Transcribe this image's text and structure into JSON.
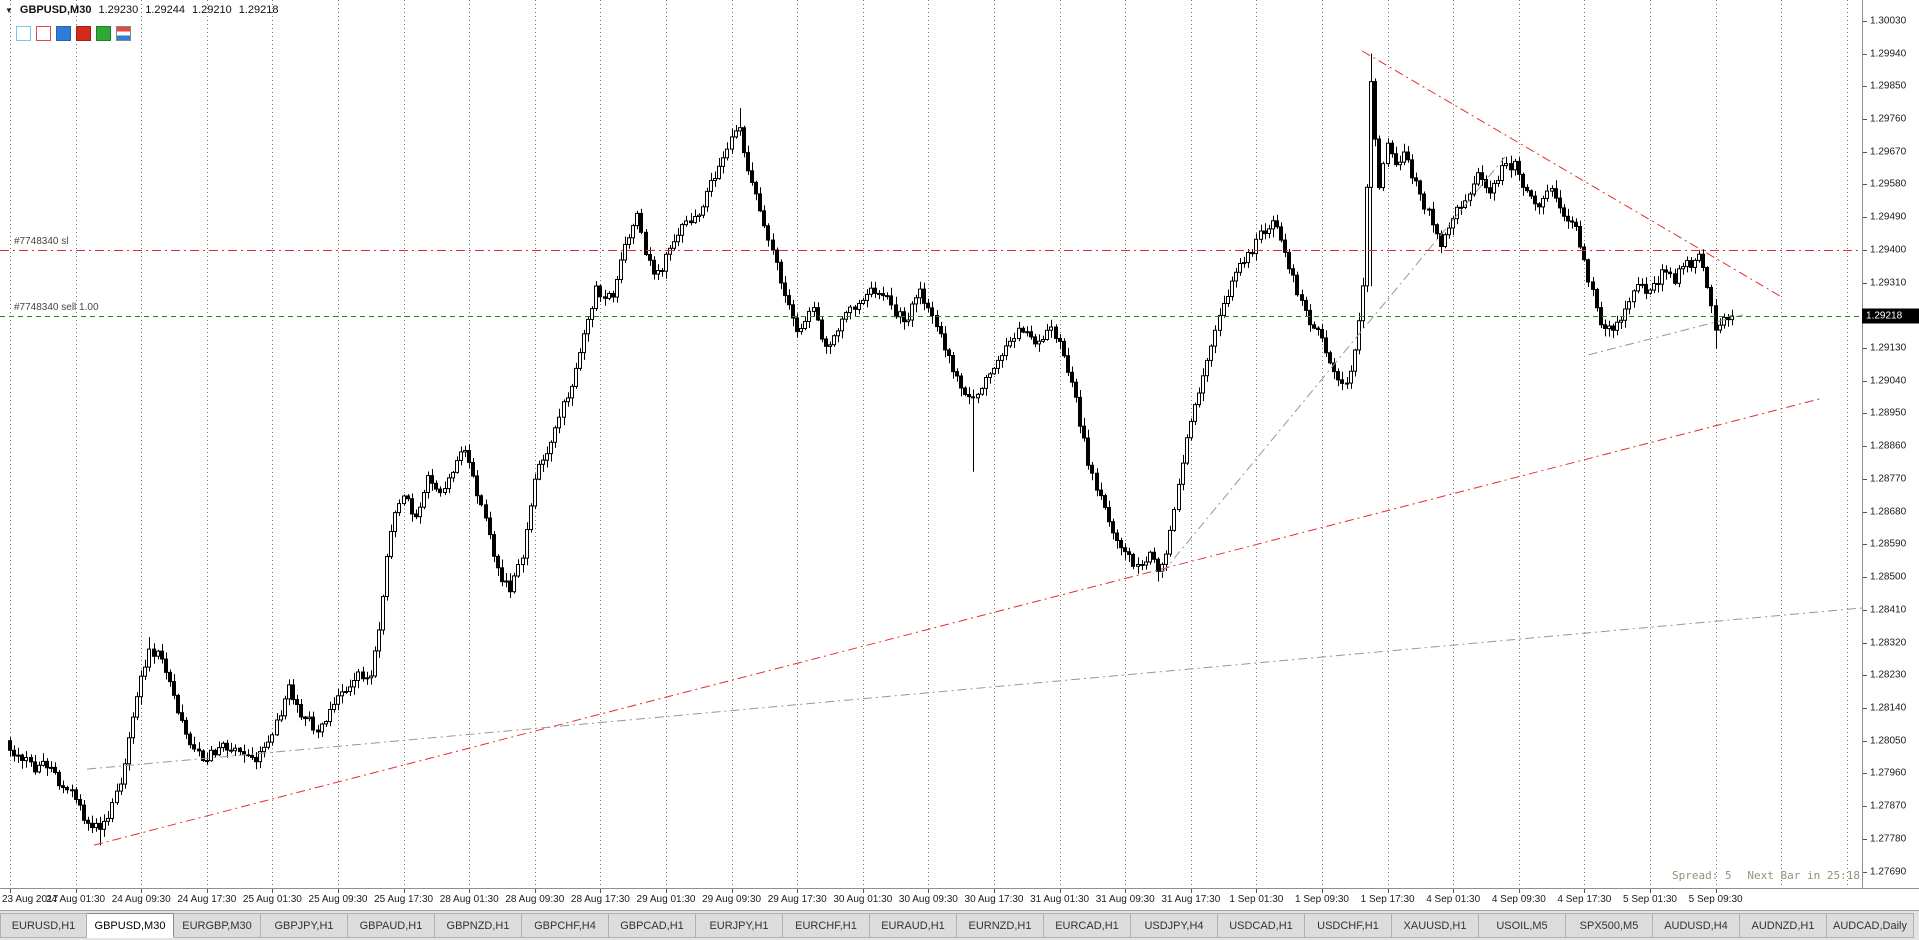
{
  "header": {
    "marker": "▼",
    "symbol": "GBPUSD,M30",
    "open": "1.29230",
    "high": "1.29244",
    "low": "1.29210",
    "close": "1.29218"
  },
  "toolbar": {
    "swatches": [
      {
        "name": "swatch-outline-lightblue",
        "fill": "#ffffff",
        "border": "#7cc4ea"
      },
      {
        "name": "swatch-outline-red",
        "fill": "#ffffff",
        "border": "#e04a3f"
      },
      {
        "name": "swatch-blue",
        "fill": "#2e7dd8",
        "border": "#2462b0"
      },
      {
        "name": "swatch-red",
        "fill": "#d42a1e",
        "border": "#a81f16"
      },
      {
        "name": "swatch-green",
        "fill": "#2fa838",
        "border": "#1f8028"
      },
      {
        "name": "swatch-striped-flag",
        "fill": "striped",
        "border": "#888888",
        "stripe_colors": [
          "#e04a3f",
          "#ffffff",
          "#2e7dd8"
        ]
      }
    ]
  },
  "order_lines": [
    {
      "name": "stop-loss-line",
      "label": "#7748340 sl",
      "price": 1.294,
      "color": "#d83030",
      "dash": "9,4,2,4"
    },
    {
      "name": "sell-order-line",
      "label": "#7748340 sell 1.00",
      "price": 1.29218,
      "color": "#1f8a1f",
      "dash": "5,4"
    }
  ],
  "trendlines": [
    {
      "name": "descending-red-trendline",
      "color": "#e23030",
      "dash": "9,4,2,4",
      "b1": 329.8,
      "p1": 1.29947,
      "b2": 431.7,
      "p2": 1.29273
    },
    {
      "name": "ascending-red-trendline",
      "color": "#e23030",
      "dash": "9,4,2,4",
      "b1": 20.5,
      "p1": 1.27763,
      "b2": 442.0,
      "p2": 1.28992
    },
    {
      "name": "ascending-gray-trendline-long",
      "color": "#979797",
      "dash": "9,4,2,4",
      "b1": 18.8,
      "p1": 1.27972,
      "b2": 451.7,
      "p2": 1.28415
    },
    {
      "name": "ascending-gray-trendline-steep",
      "color": "#979797",
      "dash": "9,4,2,4",
      "b1": 281.0,
      "p1": 1.28511,
      "b2": 364.6,
      "p2": 1.29655
    },
    {
      "name": "ascending-gray-trendline-minor",
      "color": "#979797",
      "dash": "9,4,2,4",
      "b1": 385.0,
      "p1": 1.29111,
      "b2": 422.7,
      "p2": 1.29221
    }
  ],
  "current_price": {
    "text": "1.29218",
    "value": 1.29218
  },
  "status": {
    "spread": "Spread: 5",
    "next_bar": "Next Bar in 25:18"
  },
  "price_axis": {
    "labels": [
      "1.30030",
      "1.29940",
      "1.29850",
      "1.29760",
      "1.29670",
      "1.29580",
      "1.29490",
      "1.29400",
      "1.29310",
      "1.29220",
      "1.29130",
      "1.29040",
      "1.28950",
      "1.28860",
      "1.28770",
      "1.28680",
      "1.28590",
      "1.28500",
      "1.28410",
      "1.28320",
      "1.28230",
      "1.28140",
      "1.28050",
      "1.27960",
      "1.27870",
      "1.27780",
      "1.27690"
    ]
  },
  "time_axis": {
    "labels": [
      "23 Aug 2017",
      "24 Aug 01:30",
      "24 Aug 09:30",
      "24 Aug 17:30",
      "25 Aug 01:30",
      "25 Aug 09:30",
      "25 Aug 17:30",
      "28 Aug 01:30",
      "28 Aug 09:30",
      "28 Aug 17:30",
      "29 Aug 01:30",
      "29 Aug 09:30",
      "29 Aug 17:30",
      "30 Aug 01:30",
      "30 Aug 09:30",
      "30 Aug 17:30",
      "31 Aug 01:30",
      "31 Aug 09:30",
      "31 Aug 17:30",
      "1 Sep 01:30",
      "1 Sep 09:30",
      "1 Sep 17:30",
      "4 Sep 01:30",
      "4 Sep 09:30",
      "4 Sep 17:30",
      "5 Sep 01:30",
      "5 Sep 09:30"
    ]
  },
  "tabs": {
    "active_index": 1,
    "labels": [
      "EURUSD,H1",
      "GBPUSD,M30",
      "EURGBP,M30",
      "GBPJPY,H1",
      "GBPAUD,H1",
      "GBPNZD,H1",
      "GBPCHF,H4",
      "GBPCAD,H1",
      "EURJPY,H1",
      "EURCHF,H1",
      "EURAUD,H1",
      "EURNZD,H1",
      "EURCAD,H1",
      "USDJPY,H4",
      "USDCAD,H1",
      "USDCHF,H1",
      "XAUUSD,H1",
      "USOIL,M5",
      "SPX500,M5",
      "AUDUSD,H4",
      "AUDNZD,H1",
      "AUDCAD,Daily"
    ]
  },
  "chart_data": {
    "type": "candlestick",
    "symbol": "GBPUSD",
    "timeframe": "M30",
    "ylim": [
      1.2769,
      1.3003
    ],
    "bar_count": 421,
    "bars_per_gridline": 16,
    "last_close": 1.29218,
    "grid": "vertical-dotted",
    "candle_colors": {
      "bull_body": "#ffffff",
      "bear_body": "#000000",
      "outline": "#000000"
    },
    "price_path": [
      [
        0,
        1.2803
      ],
      [
        4,
        1.28
      ],
      [
        6,
        1.2797
      ],
      [
        9,
        1.2799
      ],
      [
        12,
        1.27935
      ],
      [
        15,
        1.279
      ],
      [
        18,
        1.2784
      ],
      [
        22,
        1.278
      ],
      [
        24,
        1.2783
      ],
      [
        26,
        1.279
      ],
      [
        28,
        1.2799
      ],
      [
        30,
        1.2812
      ],
      [
        32,
        1.2823
      ],
      [
        34,
        1.283
      ],
      [
        37,
        1.2828
      ],
      [
        40,
        1.2817
      ],
      [
        44,
        1.2804
      ],
      [
        48,
        1.28
      ],
      [
        52,
        1.2804
      ],
      [
        56,
        1.2801
      ],
      [
        60,
        1.2799
      ],
      [
        64,
        1.2806
      ],
      [
        68,
        1.2819
      ],
      [
        71,
        1.2812
      ],
      [
        75,
        1.2808
      ],
      [
        79,
        1.2815
      ],
      [
        84,
        1.2822
      ],
      [
        88,
        1.2824
      ],
      [
        90,
        1.2835
      ],
      [
        93,
        1.2864
      ],
      [
        96,
        1.2872
      ],
      [
        99,
        1.2867
      ],
      [
        102,
        1.2878
      ],
      [
        105,
        1.2873
      ],
      [
        108,
        1.288
      ],
      [
        111,
        1.2885
      ],
      [
        113,
        1.2878
      ],
      [
        116,
        1.2865
      ],
      [
        119,
        1.2852
      ],
      [
        122,
        1.2846
      ],
      [
        125,
        1.2855
      ],
      [
        128,
        1.2878
      ],
      [
        131,
        1.2884
      ],
      [
        134,
        1.2895
      ],
      [
        137,
        1.2902
      ],
      [
        140,
        1.2916
      ],
      [
        143,
        1.2929
      ],
      [
        147,
        1.2927
      ],
      [
        150,
        1.2942
      ],
      [
        153,
        1.295
      ],
      [
        155,
        1.2938
      ],
      [
        158,
        1.2933
      ],
      [
        161,
        1.294
      ],
      [
        164,
        1.2946
      ],
      [
        168,
        1.2951
      ],
      [
        172,
        1.296
      ],
      [
        175,
        1.2968
      ],
      [
        178,
        1.2973
      ],
      [
        180,
        1.2963
      ],
      [
        183,
        1.2952
      ],
      [
        186,
        1.294
      ],
      [
        189,
        1.2928
      ],
      [
        192,
        1.2918
      ],
      [
        196,
        1.2923
      ],
      [
        199,
        1.2912
      ],
      [
        202,
        1.2918
      ],
      [
        206,
        1.2925
      ],
      [
        210,
        1.293
      ],
      [
        214,
        1.2926
      ],
      [
        218,
        1.292
      ],
      [
        222,
        1.2928
      ],
      [
        226,
        1.292
      ],
      [
        229,
        1.291
      ],
      [
        232,
        1.2902
      ],
      [
        235,
        1.2898
      ],
      [
        238,
        1.2905
      ],
      [
        242,
        1.2912
      ],
      [
        246,
        1.2918
      ],
      [
        250,
        1.2914
      ],
      [
        254,
        1.2918
      ],
      [
        257,
        1.2912
      ],
      [
        260,
        1.2898
      ],
      [
        263,
        1.2882
      ],
      [
        266,
        1.2872
      ],
      [
        269,
        1.2862
      ],
      [
        272,
        1.2858
      ],
      [
        275,
        1.2852
      ],
      [
        278,
        1.2856
      ],
      [
        280,
        1.2851
      ],
      [
        282,
        1.2855
      ],
      [
        284,
        1.287
      ],
      [
        287,
        1.2888
      ],
      [
        290,
        1.29
      ],
      [
        293,
        1.2913
      ],
      [
        296,
        1.2925
      ],
      [
        299,
        1.2934
      ],
      [
        302,
        1.2938
      ],
      [
        305,
        1.2944
      ],
      [
        308,
        1.2948
      ],
      [
        311,
        1.294
      ],
      [
        314,
        1.2928
      ],
      [
        317,
        1.292
      ],
      [
        320,
        1.2916
      ],
      [
        323,
        1.2906
      ],
      [
        326,
        1.2904
      ],
      [
        328,
        1.2912
      ],
      [
        330,
        1.293
      ],
      [
        332,
        1.2985
      ],
      [
        334,
        1.2958
      ],
      [
        336,
        1.297
      ],
      [
        338,
        1.2963
      ],
      [
        340,
        1.2966
      ],
      [
        343,
        1.2958
      ],
      [
        346,
        1.295
      ],
      [
        349,
        1.2942
      ],
      [
        352,
        1.2948
      ],
      [
        355,
        1.2955
      ],
      [
        358,
        1.296
      ],
      [
        361,
        1.2957
      ],
      [
        364,
        1.2962
      ],
      [
        367,
        1.2964
      ],
      [
        370,
        1.2955
      ],
      [
        373,
        1.2952
      ],
      [
        376,
        1.2956
      ],
      [
        379,
        1.295
      ],
      [
        382,
        1.2946
      ],
      [
        385,
        1.2932
      ],
      [
        388,
        1.292
      ],
      [
        391,
        1.2917
      ],
      [
        394,
        1.2923
      ],
      [
        397,
        1.293
      ],
      [
        400,
        1.2928
      ],
      [
        403,
        1.2934
      ],
      [
        406,
        1.2932
      ],
      [
        409,
        1.2936
      ],
      [
        412,
        1.2938
      ],
      [
        414,
        1.293
      ],
      [
        416,
        1.2917
      ],
      [
        418,
        1.292
      ],
      [
        420,
        1.29218
      ]
    ],
    "spikes": [
      {
        "bar": 22,
        "low": 1.27762
      },
      {
        "bar": 34,
        "high": 1.28335
      },
      {
        "bar": 178,
        "high": 1.2979
      },
      {
        "bar": 235,
        "low": 1.2879
      },
      {
        "bar": 280,
        "low": 1.28488
      },
      {
        "bar": 332,
        "high": 1.2994,
        "low": 1.293
      },
      {
        "bar": 412,
        "high": 1.294
      },
      {
        "bar": 416,
        "low": 1.29128
      }
    ]
  }
}
